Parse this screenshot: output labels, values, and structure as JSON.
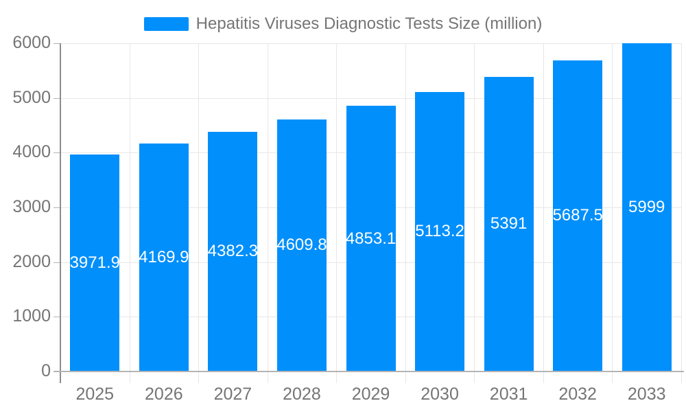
{
  "chart_data": {
    "type": "bar",
    "title": "Hepatitis Viruses Diagnostic Tests Size (million)",
    "legend": [
      "Hepatitis Viruses Diagnostic Tests Size (million)"
    ],
    "legend_position": "top",
    "categories": [
      "2025",
      "2026",
      "2027",
      "2028",
      "2029",
      "2030",
      "2031",
      "2032",
      "2033"
    ],
    "values": [
      3971.9,
      4169.9,
      4382.3,
      4609.8,
      4853.1,
      5113.2,
      5391,
      5687.5,
      5999
    ],
    "data_labels": [
      "3971.9",
      "4169.9",
      "4382.3",
      "4609.8",
      "4853.1",
      "5113.2",
      "5391",
      "5687.5",
      "5999"
    ],
    "ylim": [
      0,
      6000
    ],
    "yticks": [
      "0",
      "1000",
      "2000",
      "3000",
      "4000",
      "5000",
      "6000"
    ],
    "grid": true,
    "xlabel": "",
    "ylabel": ""
  },
  "colors": {
    "bar": "#008FFB",
    "data_label": "#FFFFFF",
    "axis_label": "#757575",
    "legend_label": "#757575",
    "gridline": "#E7E7E7",
    "baseline": "#B3B3B3",
    "axis_line": "#8C8C8C"
  }
}
